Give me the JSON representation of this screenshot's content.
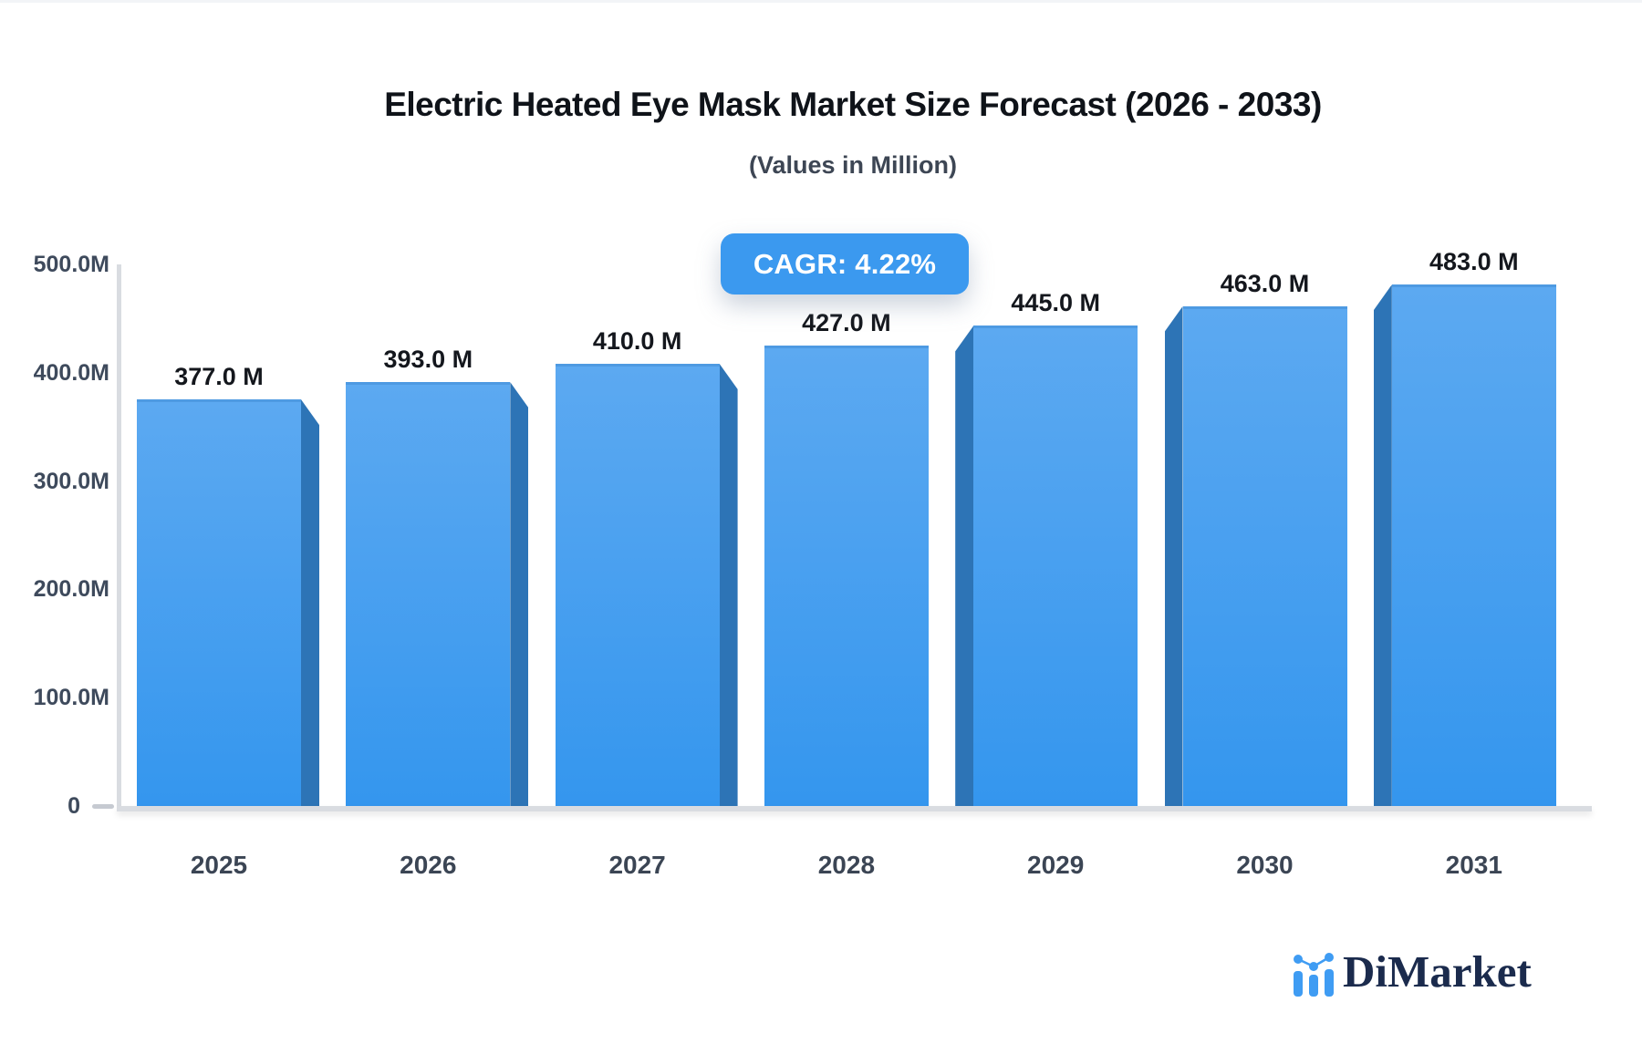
{
  "page": {
    "title": "Electric Heated Eye Mask Market Size Forecast (2026 - 2033)",
    "subtitle": "(Values in Million)"
  },
  "badge": {
    "label": "CAGR: 4.22%",
    "color": "#3b99ef"
  },
  "chart_data": {
    "type": "bar",
    "title": "Electric Heated Eye Mask Market Size Forecast (2026 - 2033)",
    "subtitle": "(Values in Million)",
    "categories": [
      "2025",
      "2026",
      "2027",
      "2028",
      "2029",
      "2030",
      "2031"
    ],
    "values": [
      377,
      393,
      410,
      427,
      445,
      463,
      483
    ],
    "value_labels": [
      "377.0 M",
      "393.0 M",
      "410.0 M",
      "427.0 M",
      "445.0 M",
      "463.0 M",
      "483.0 M"
    ],
    "xlabel": "",
    "ylabel": "",
    "ylim": [
      0,
      500
    ],
    "yticks": [
      {
        "value": 500,
        "label": "500.0M"
      },
      {
        "value": 400,
        "label": "400.0M"
      },
      {
        "value": 300,
        "label": "300.0M"
      },
      {
        "value": 200,
        "label": "200.0M"
      },
      {
        "value": 100,
        "label": "100.0M"
      },
      {
        "value": 0,
        "label": "0"
      }
    ],
    "grid": false,
    "legend": false,
    "colors": {
      "bar_top": "#5ca9f1",
      "bar_bottom": "#3496ee",
      "bar_top_edge": "#4e9ae2",
      "bar_side": "#2d74b6",
      "axis": "#d9dce1"
    }
  },
  "logo": {
    "text": "DiMarket",
    "icon": "bar-chart-logo-icon",
    "icon_color": "#3f9cf3",
    "text_color": "#1b2b4d"
  }
}
